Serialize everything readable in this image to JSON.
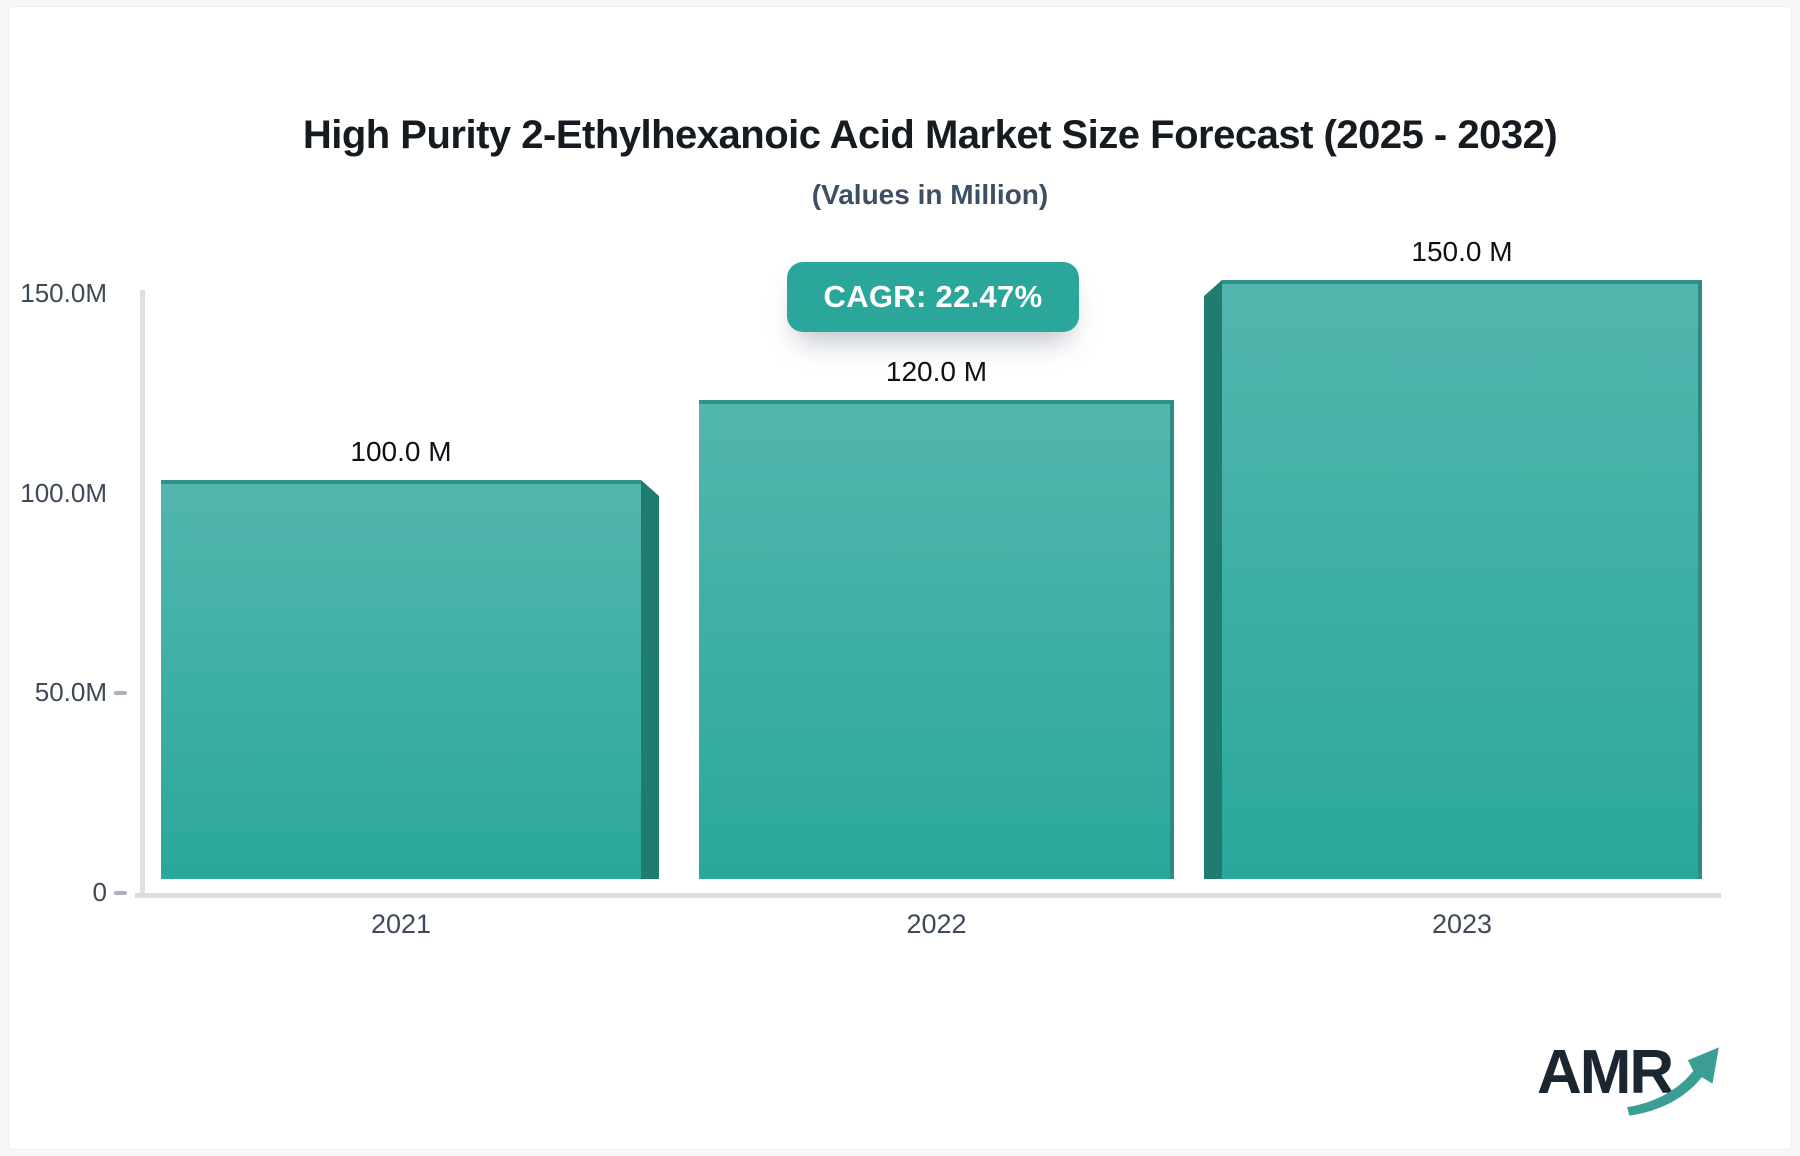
{
  "page": {
    "background_color": "#f6f7f9",
    "card_background_color": "#ffffff"
  },
  "header": {
    "title": "High Purity 2-Ethylhexanoic Acid Market Size Forecast (2025 - 2032)",
    "subtitle": "(Values in Million)"
  },
  "cagr_badge": {
    "label": "CAGR: 22.47%",
    "background_color": "#2aa79a",
    "text_color": "#ffffff"
  },
  "chart_data": {
    "type": "bar",
    "title": "High Purity 2-Ethylhexanoic Acid Market Size Forecast (2025 - 2032)",
    "subtitle": "(Values in Million)",
    "unit": "Million",
    "categories": [
      "2021",
      "2022",
      "2023"
    ],
    "values": [
      100.0,
      120.0,
      150.0
    ],
    "value_labels": [
      "100.0 M",
      "120.0 M",
      "150.0 M"
    ],
    "cagr_percent": 22.47,
    "xlabel": "",
    "ylabel": "",
    "ylim": [
      0,
      150
    ],
    "grid": false,
    "legend": "none",
    "y_axis": {
      "ticks": [
        {
          "label": "150.0M",
          "value": 150,
          "dash": false
        },
        {
          "label": "100.0M",
          "value": 100,
          "dash": false
        },
        {
          "label": "50.0M",
          "value": 50,
          "dash": true
        },
        {
          "label": "0",
          "value": 0,
          "dash": true
        }
      ]
    },
    "bar_color_top": "#52b6ae",
    "bar_color_bottom": "#2aa89b",
    "bar_top_edge_color": "#2e9286",
    "bar_side_color": "#207c71"
  },
  "logo": {
    "text": "AMR",
    "icon": "trend-up-arrow-icon",
    "text_color": "#1b2630",
    "arrow_color": "#3a9e94"
  }
}
